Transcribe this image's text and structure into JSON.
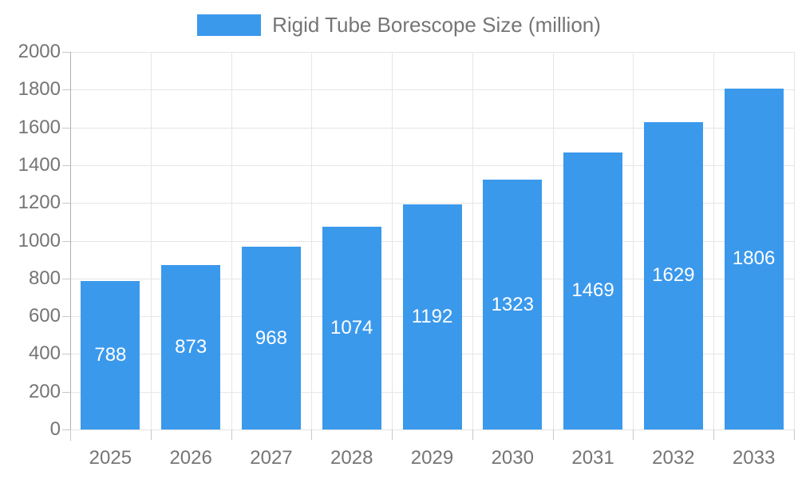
{
  "legend": {
    "label": "Rigid Tube Borescope Size (million)"
  },
  "chart_data": {
    "type": "bar",
    "title": "Rigid Tube Borescope Size (million)",
    "categories": [
      "2025",
      "2026",
      "2027",
      "2028",
      "2029",
      "2030",
      "2031",
      "2032",
      "2033"
    ],
    "values": [
      788,
      873,
      968,
      1074,
      1192,
      1323,
      1469,
      1629,
      1806
    ],
    "series_name": "Rigid Tube Borescope Size (million)",
    "xlabel": "",
    "ylabel": "",
    "ylim": [
      0,
      2000
    ],
    "ytick_step": 200,
    "ytick_labels": [
      "0",
      "200",
      "400",
      "600",
      "800",
      "1000",
      "1200",
      "1400",
      "1600",
      "1800",
      "2000"
    ],
    "grid": "on",
    "legend_position": "top-center",
    "value_labels": "inside-center-white"
  },
  "colors": {
    "bar": "#3b99ec",
    "bar_label": "#ffffff",
    "axis_text": "#757575",
    "gridline": "#e6e6e6",
    "axis_line": "#b0b0b0",
    "tick": "#c8c8c8",
    "background": "#ffffff"
  }
}
